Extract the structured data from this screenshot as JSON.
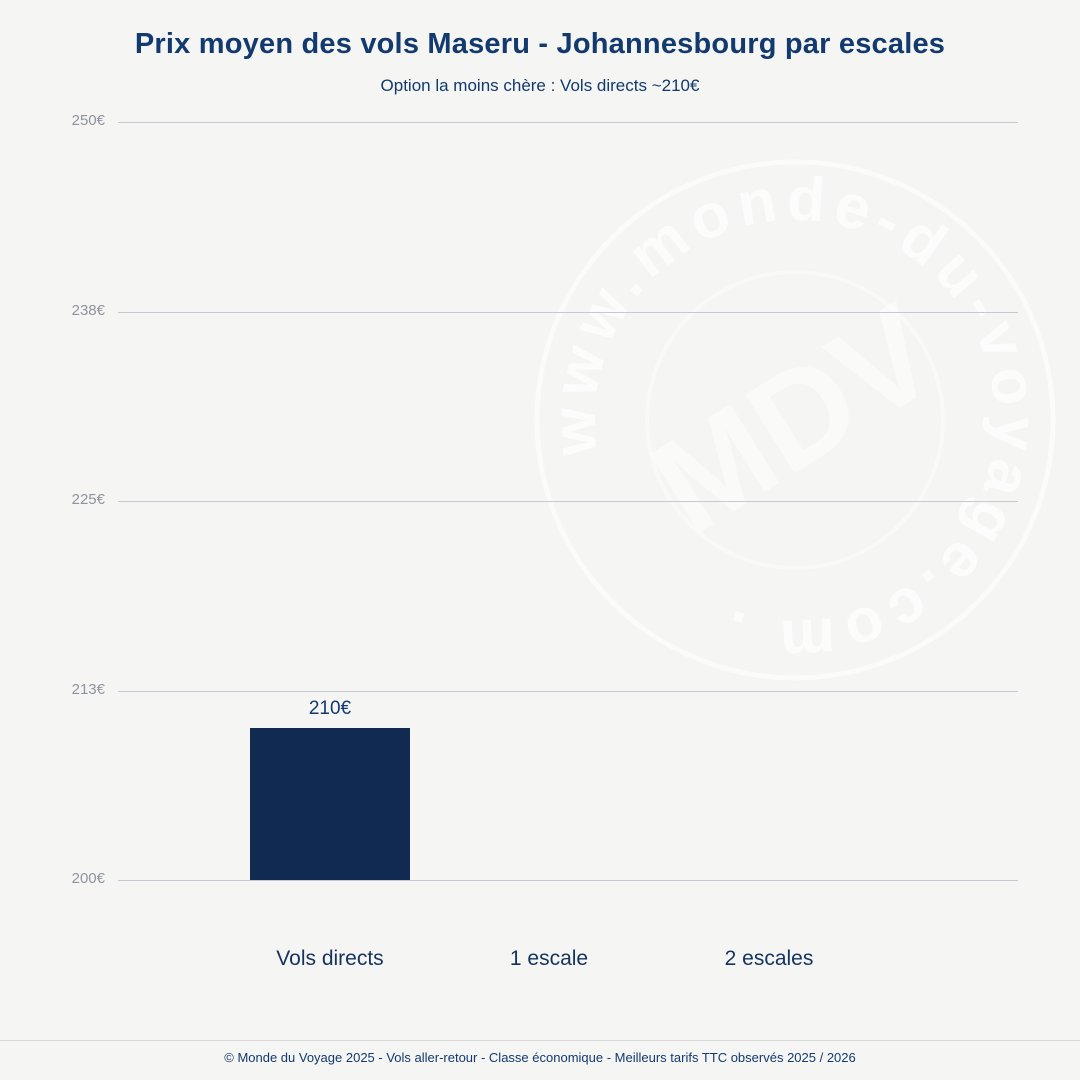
{
  "title": "Prix moyen des vols Maseru - Johannesbourg par escales",
  "subtitle": "Option la moins chère : Vols directs ~210€",
  "footer": "© Monde du Voyage 2025 - Vols aller-retour - Classe économique - Meilleurs tarifs TTC observés 2025 / 2026",
  "watermark": {
    "ring_text": "www.monde-du-voyage.com .",
    "center_text": "MDV"
  },
  "colors": {
    "background": "#f5f5f3",
    "accent_navy": "#123a6e",
    "bar": "#112a52",
    "grid": "#c4c9d3",
    "tick_text": "#8e949e"
  },
  "chart_data": {
    "type": "bar",
    "title": "Prix moyen des vols Maseru - Johannesbourg par escales",
    "subtitle": "Option la moins chère : Vols directs ~210€",
    "categories": [
      "Vols directs",
      "1 escale",
      "2 escales"
    ],
    "values": [
      210,
      null,
      null
    ],
    "value_labels": [
      "210€",
      "",
      ""
    ],
    "xlabel": "",
    "ylabel": "",
    "ylim": [
      200,
      250
    ],
    "yticks": [
      {
        "value": 250,
        "label": "250€"
      },
      {
        "value": 237.5,
        "label": "238€"
      },
      {
        "value": 225,
        "label": "225€"
      },
      {
        "value": 212.5,
        "label": "213€"
      },
      {
        "value": 200,
        "label": "200€"
      }
    ],
    "grid": true,
    "legend": "none",
    "bar_color": "#112a52",
    "unit": "€"
  }
}
